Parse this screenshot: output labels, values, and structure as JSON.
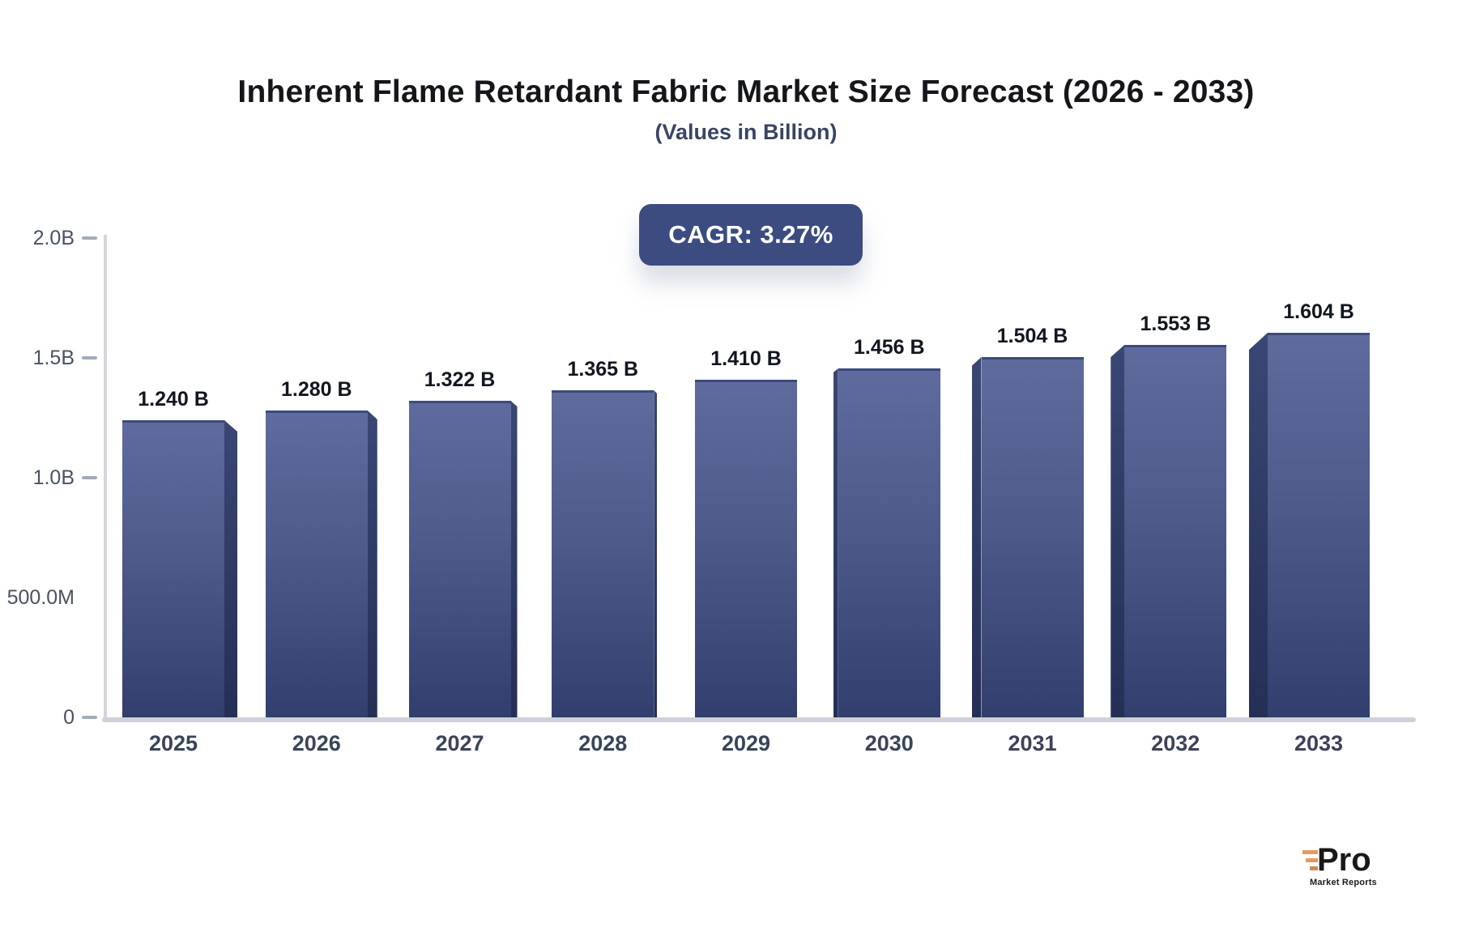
{
  "header": {
    "title": "Inherent Flame Retardant Fabric Market Size Forecast (2026 - 2033)",
    "subtitle": "(Values in Billion)",
    "cagr_badge": "CAGR: 3.27%"
  },
  "chart_data": {
    "type": "bar",
    "title": "Inherent Flame Retardant Fabric Market Size Forecast (2026 - 2033)",
    "subtitle": "(Values in Billion)",
    "categories": [
      "2025",
      "2026",
      "2027",
      "2028",
      "2029",
      "2030",
      "2031",
      "2032",
      "2033"
    ],
    "values_billion": [
      1.24,
      1.28,
      1.322,
      1.365,
      1.41,
      1.456,
      1.504,
      1.553,
      1.604
    ],
    "value_labels": [
      "1.240 B",
      "1.280 B",
      "1.322 B",
      "1.365 B",
      "1.410 B",
      "1.456 B",
      "1.504 B",
      "1.553 B",
      "1.604 B"
    ],
    "xlabel": "",
    "ylabel": "",
    "ylim_billion": [
      0,
      2.0
    ],
    "grid": false,
    "legend": false,
    "y_ticks": [
      {
        "label": "2.0B",
        "value_billion": 2.0,
        "dash": true
      },
      {
        "label": "1.5B",
        "value_billion": 1.5,
        "dash": true
      },
      {
        "label": "1.0B",
        "value_billion": 1.0,
        "dash": true
      },
      {
        "label": "500.0M",
        "value_billion": 0.5,
        "dash": false
      },
      {
        "label": "0",
        "value_billion": 0.0,
        "dash": true
      }
    ]
  },
  "colors": {
    "bar_face_top": "#5f6b9d",
    "bar_face_bottom": "#323e6e",
    "bar_side": "#2c3763",
    "badge_bg": "#3c4c81",
    "badge_text": "#ffffff",
    "axis_line": "#d3d6dd",
    "subtitle_text": "#3a4563",
    "logo_orange": "#e39a62"
  },
  "branding": {
    "logo_text": "Pro",
    "logo_tagline": "Market Reports"
  }
}
